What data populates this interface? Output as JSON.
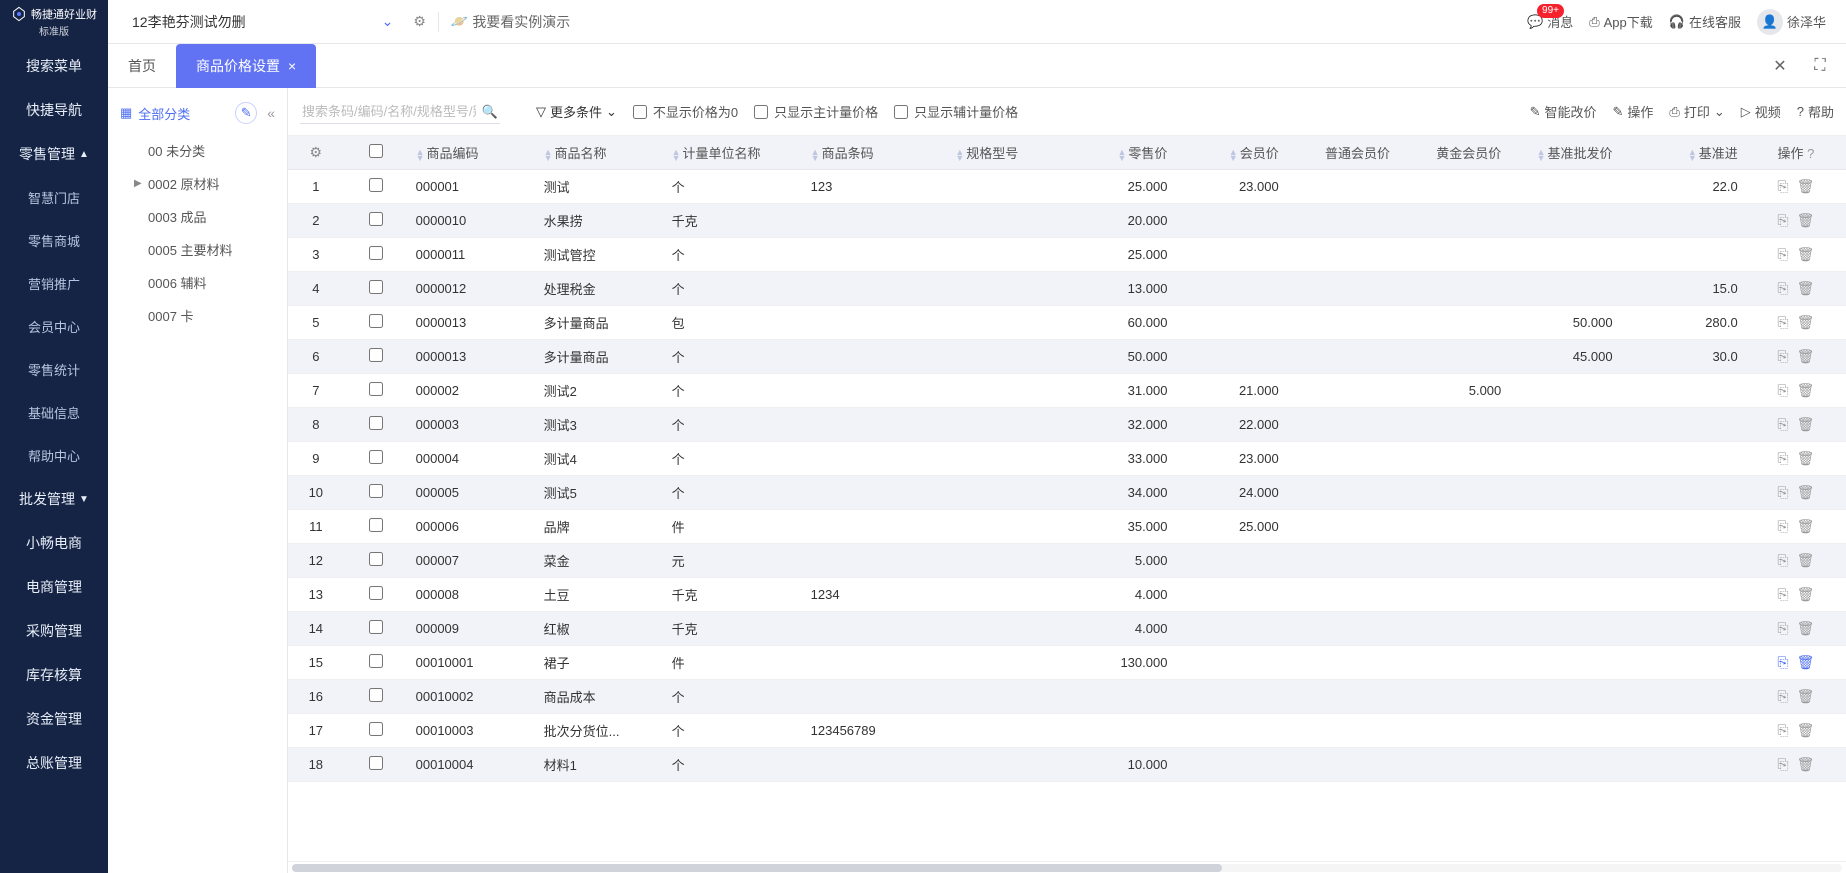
{
  "colors": {
    "sidebar_bg": "#152445",
    "accent": "#4e6ef2",
    "tab_active_bg": "#6173f3",
    "table_header_bg": "#f2f3f9",
    "row_alt_bg": "#f2f3f9",
    "border": "#e5e7eb"
  },
  "brand": {
    "name": "畅捷通好业财",
    "version": "标准版"
  },
  "project": {
    "name": "12李艳芬测试勿删"
  },
  "demo_label": "我要看实例演示",
  "header_actions": {
    "msg": "消息",
    "msg_badge": "99+",
    "app_download": "App下载",
    "support": "在线客服",
    "user": "徐泽华"
  },
  "sidebar": {
    "search": "搜索菜单",
    "quick": "快捷导航",
    "retail_mgmt": "零售管理",
    "retail_sub": [
      "智慧门店",
      "零售商城",
      "营销推广",
      "会员中心",
      "零售统计",
      "基础信息",
      "帮助中心"
    ],
    "wholesale": "批发管理",
    "ecom": "小畅电商",
    "ecom_mgmt": "电商管理",
    "purchase": "采购管理",
    "inventory": "库存核算",
    "fund": "资金管理",
    "ledger": "总账管理"
  },
  "tabs": {
    "home": "首页",
    "active": "商品价格设置"
  },
  "cat_panel": {
    "title": "全部分类",
    "items": [
      {
        "label": "00 未分类",
        "has_children": false
      },
      {
        "label": "0002 原材料",
        "has_children": true
      },
      {
        "label": "0003 成品",
        "has_children": false
      },
      {
        "label": "0005 主要材料",
        "has_children": false
      },
      {
        "label": "0006 辅料",
        "has_children": false
      },
      {
        "label": "0007 卡",
        "has_children": false
      }
    ]
  },
  "toolbar": {
    "search_placeholder": "搜索条码/编码/名称/规格型号/别名",
    "more": "更多条件",
    "chk_hide_zero": "不显示价格为0",
    "chk_main_unit": "只显示主计量价格",
    "chk_aux_unit": "只显示辅计量价格",
    "smart": "智能改价",
    "ops": "操作",
    "print": "打印",
    "video": "视频",
    "help": "帮助"
  },
  "columns": {
    "code": "商品编码",
    "name": "商品名称",
    "unit": "计量单位名称",
    "barcode": "商品条码",
    "spec": "规格型号",
    "retail": "零售价",
    "member": "会员价",
    "normal_member": "普通会员价",
    "gold_member": "黄金会员价",
    "base_wholesale": "基准批发价",
    "base_j": "基准进",
    "ops": "操作"
  },
  "rows": [
    {
      "idx": 1,
      "code": "000001",
      "name": "测试",
      "unit": "个",
      "barcode": "123",
      "spec": "",
      "retail": "25.000",
      "member": "23.000",
      "normal": "",
      "gold": "",
      "basew": "",
      "basej": "22.0"
    },
    {
      "idx": 2,
      "code": "0000010",
      "name": "水果捞",
      "unit": "千克",
      "barcode": "",
      "spec": "",
      "retail": "20.000",
      "member": "",
      "normal": "",
      "gold": "",
      "basew": "",
      "basej": ""
    },
    {
      "idx": 3,
      "code": "0000011",
      "name": "测试管控",
      "unit": "个",
      "barcode": "",
      "spec": "",
      "retail": "25.000",
      "member": "",
      "normal": "",
      "gold": "",
      "basew": "",
      "basej": ""
    },
    {
      "idx": 4,
      "code": "0000012",
      "name": "处理税金",
      "unit": "个",
      "barcode": "",
      "spec": "",
      "retail": "13.000",
      "member": "",
      "normal": "",
      "gold": "",
      "basew": "",
      "basej": "15.0"
    },
    {
      "idx": 5,
      "code": "0000013",
      "name": "多计量商品",
      "unit": "包",
      "barcode": "",
      "spec": "",
      "retail": "60.000",
      "member": "",
      "normal": "",
      "gold": "",
      "basew": "50.000",
      "basej": "280.0"
    },
    {
      "idx": 6,
      "code": "0000013",
      "name": "多计量商品",
      "unit": "个",
      "barcode": "",
      "spec": "",
      "retail": "50.000",
      "member": "",
      "normal": "",
      "gold": "",
      "basew": "45.000",
      "basej": "30.0"
    },
    {
      "idx": 7,
      "code": "000002",
      "name": "测试2",
      "unit": "个",
      "barcode": "",
      "spec": "",
      "retail": "31.000",
      "member": "21.000",
      "normal": "",
      "gold": "5.000",
      "basew": "",
      "basej": ""
    },
    {
      "idx": 8,
      "code": "000003",
      "name": "测试3",
      "unit": "个",
      "barcode": "",
      "spec": "",
      "retail": "32.000",
      "member": "22.000",
      "normal": "",
      "gold": "",
      "basew": "",
      "basej": ""
    },
    {
      "idx": 9,
      "code": "000004",
      "name": "测试4",
      "unit": "个",
      "barcode": "",
      "spec": "",
      "retail": "33.000",
      "member": "23.000",
      "normal": "",
      "gold": "",
      "basew": "",
      "basej": ""
    },
    {
      "idx": 10,
      "code": "000005",
      "name": "测试5",
      "unit": "个",
      "barcode": "",
      "spec": "",
      "retail": "34.000",
      "member": "24.000",
      "normal": "",
      "gold": "",
      "basew": "",
      "basej": ""
    },
    {
      "idx": 11,
      "code": "000006",
      "name": "品牌",
      "unit": "件",
      "barcode": "",
      "spec": "",
      "retail": "35.000",
      "member": "25.000",
      "normal": "",
      "gold": "",
      "basew": "",
      "basej": ""
    },
    {
      "idx": 12,
      "code": "000007",
      "name": "菜金",
      "unit": "元",
      "barcode": "",
      "spec": "",
      "retail": "5.000",
      "member": "",
      "normal": "",
      "gold": "",
      "basew": "",
      "basej": ""
    },
    {
      "idx": 13,
      "code": "000008",
      "name": "土豆",
      "unit": "千克",
      "barcode": "1234",
      "spec": "",
      "retail": "4.000",
      "member": "",
      "normal": "",
      "gold": "",
      "basew": "",
      "basej": ""
    },
    {
      "idx": 14,
      "code": "000009",
      "name": "红椒",
      "unit": "千克",
      "barcode": "",
      "spec": "",
      "retail": "4.000",
      "member": "",
      "normal": "",
      "gold": "",
      "basew": "",
      "basej": ""
    },
    {
      "idx": 15,
      "code": "00010001",
      "name": "裙子",
      "unit": "件",
      "barcode": "",
      "spec": "",
      "retail": "130.000",
      "member": "",
      "normal": "",
      "gold": "",
      "basew": "",
      "basej": "",
      "hl": true
    },
    {
      "idx": 16,
      "code": "00010002",
      "name": "商品成本",
      "unit": "个",
      "barcode": "",
      "spec": "",
      "retail": "",
      "member": "",
      "normal": "",
      "gold": "",
      "basew": "",
      "basej": ""
    },
    {
      "idx": 17,
      "code": "00010003",
      "name": "批次分货位...",
      "unit": "个",
      "barcode": "123456789",
      "spec": "",
      "retail": "",
      "member": "",
      "normal": "",
      "gold": "",
      "basew": "",
      "basej": ""
    },
    {
      "idx": 18,
      "code": "00010004",
      "name": "材料1",
      "unit": "个",
      "barcode": "",
      "spec": "",
      "retail": "10.000",
      "member": "",
      "normal": "",
      "gold": "",
      "basew": "",
      "basej": ""
    }
  ]
}
